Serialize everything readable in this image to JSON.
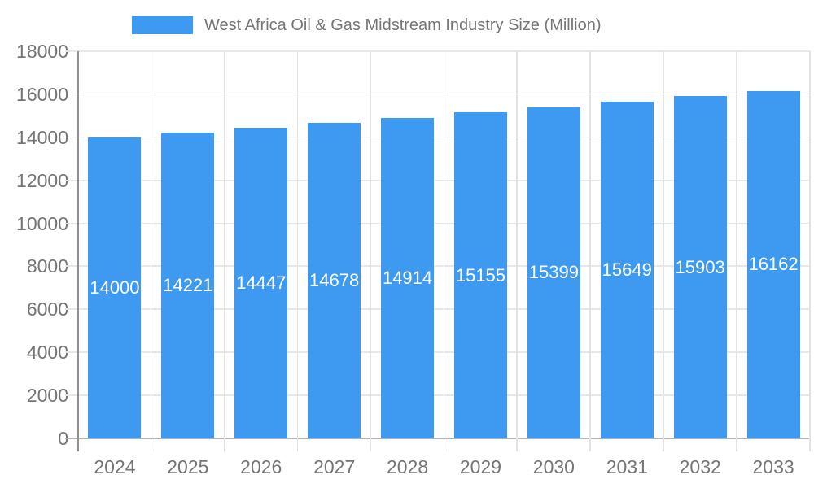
{
  "header": {
    "legend_swatch_color": "#3d9af0",
    "title": "West Africa Oil & Gas Midstream Industry Size (Million)"
  },
  "chart_data": {
    "type": "bar",
    "title": "West Africa Oil & Gas Midstream Industry Size (Million)",
    "categories": [
      "2024",
      "2025",
      "2026",
      "2027",
      "2028",
      "2029",
      "2030",
      "2031",
      "2032",
      "2033"
    ],
    "values": [
      14000,
      14221,
      14447,
      14678,
      14914,
      15155,
      15399,
      15649,
      15903,
      16162
    ],
    "value_labels": [
      "14000",
      "14221",
      "14447",
      "14678",
      "14914",
      "15155",
      "15399",
      "15649",
      "15903",
      "16162"
    ],
    "xlabel": "",
    "ylabel": "",
    "ylim": [
      0,
      18000
    ],
    "ytick_step": 2000,
    "ytick_labels": [
      "0",
      "2000",
      "4000",
      "6000",
      "8000",
      "10000",
      "12000",
      "14000",
      "16000",
      "18000"
    ],
    "grid": true,
    "legend_position": "top",
    "value_label_position": "center-of-bar",
    "colors": {
      "bar": "#3d9af0",
      "value_label": "#ffffff",
      "axis_text": "#757575",
      "title_text": "#757575",
      "gridline": "#e7e7e7",
      "vertical_gridline": "#e2e2e2",
      "baseline": "#b3b3b3",
      "yaxis_line": "#8f8f8f",
      "background": "#ffffff"
    }
  }
}
